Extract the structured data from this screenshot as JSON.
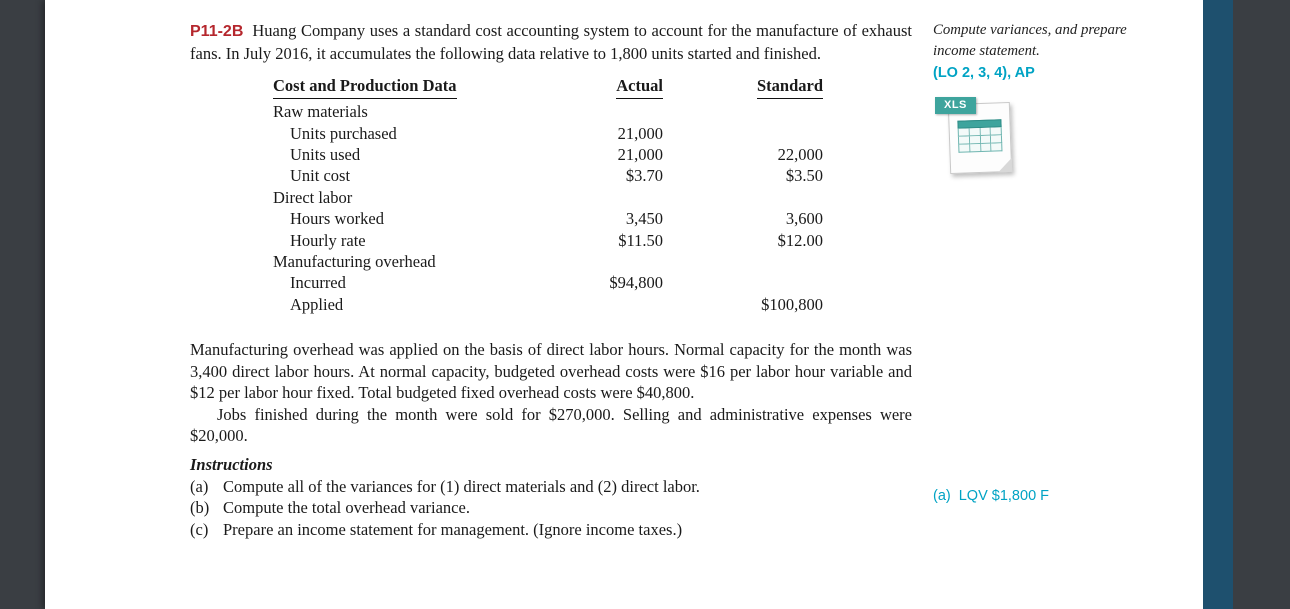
{
  "problem": {
    "id": "P11-2B",
    "intro": "Huang Company uses a standard cost accounting system to account for the manufacture of exhaust fans. In July 2016, it accumulates the following data relative to 1,800 units started and finished."
  },
  "margin_notes": {
    "objective": "Compute variances, and prepare income statement.",
    "lo_tag": "(LO 2, 3, 4),",
    "difficulty": "AP",
    "xls_icon_label": "XLS",
    "check_figure_letter": "(a)",
    "check_figure_text": "LQV $1,800 F"
  },
  "cost_table": {
    "headers": {
      "label": "Cost and Production Data",
      "actual": "Actual",
      "standard": "Standard"
    },
    "rows": [
      {
        "label": "Raw materials",
        "actual": "",
        "standard": ""
      },
      {
        "label": "Units purchased",
        "actual": "21,000",
        "standard": ""
      },
      {
        "label": "Units used",
        "actual": "21,000",
        "standard": "22,000"
      },
      {
        "label": "Unit cost",
        "actual": "$3.70",
        "standard": "$3.50"
      },
      {
        "label": "Direct labor",
        "actual": "",
        "standard": ""
      },
      {
        "label": "Hours worked",
        "actual": "3,450",
        "standard": "3,600"
      },
      {
        "label": "Hourly rate",
        "actual": "$11.50",
        "standard": "$12.00"
      },
      {
        "label": "Manufacturing overhead",
        "actual": "",
        "standard": ""
      },
      {
        "label": "Incurred",
        "actual": "$94,800",
        "standard": ""
      },
      {
        "label": "Applied",
        "actual": "",
        "standard": "$100,800"
      }
    ]
  },
  "body_paragraphs": {
    "overhead_note": "Manufacturing overhead was applied on the basis of direct labor hours. Normal capacity for the month was 3,400 direct labor hours. At normal capacity, budgeted overhead costs were $16 per labor hour variable and $12 per labor hour fixed. Total budgeted fixed overhead costs were $40,800.",
    "sales_note": "Jobs finished during the month were sold for $270,000. Selling and administrative expenses were $20,000."
  },
  "instructions": {
    "title": "Instructions",
    "items": [
      {
        "letter": "(a)",
        "text": "Compute all of the variances for (1) direct materials and (2) direct labor."
      },
      {
        "letter": "(b)",
        "text": "Compute the total overhead variance."
      },
      {
        "letter": "(c)",
        "text": "Prepare an income statement for management. (Ignore income taxes.)"
      }
    ]
  }
}
